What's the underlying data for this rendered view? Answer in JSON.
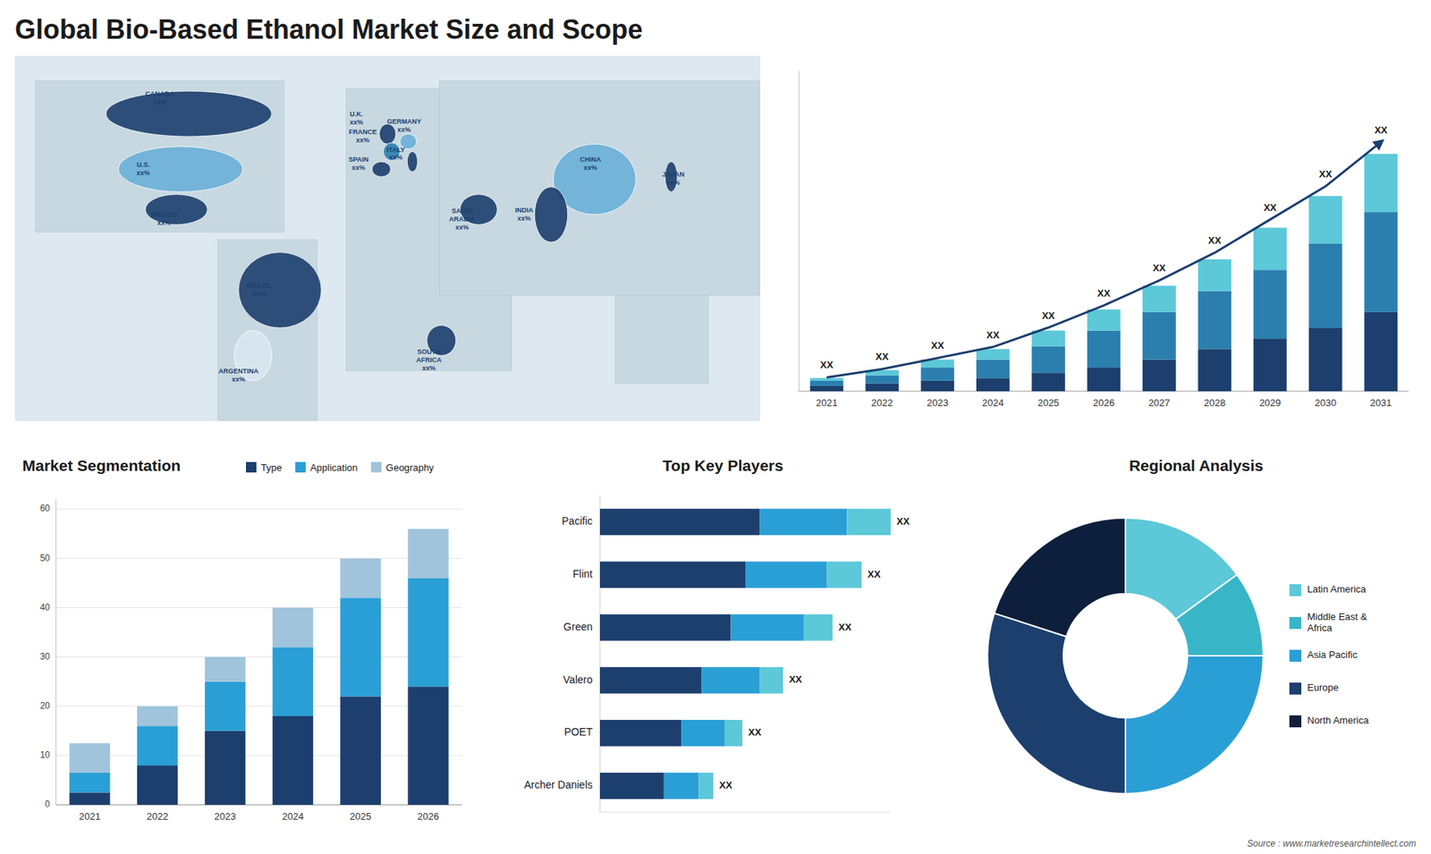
{
  "title": "Global Bio-Based Ethanol Market Size and Scope",
  "annotations": [
    "Source : www.marketresearchintellect.com"
  ],
  "chart_data": [
    {
      "type": "map",
      "categories": [
        "CANADA",
        "U.S.",
        "MEXICO",
        "BRAZIL",
        "ARGENTINA",
        "U.K.",
        "FRANCE",
        "SPAIN",
        "GERMANY",
        "ITALY",
        "SAUDI\nARABIA",
        "SOUTH\nAFRICA",
        "CHINA",
        "INDIA",
        "JAPAN"
      ],
      "annotations": [
        "xx%",
        "xx%",
        "xx%",
        "xx%",
        "xx%",
        "xx%",
        "xx%",
        "xx%",
        "xx%",
        "xx%",
        "xx%",
        "xx%",
        "xx%",
        "xx%",
        "xx%"
      ],
      "colors": [
        "#1c3f6e",
        "#6ab0d8",
        "#1c3f6e",
        "#1c3f6e",
        "#d8e8f0",
        "#1c3f6e",
        "#2a7fae",
        "#1c3f6e",
        "#6ab0d8",
        "#1c3f6e",
        "#1c3f6e",
        "#1c3f6e",
        "#6ab0d8",
        "#1c3f6e",
        "#1c3f6e"
      ]
    },
    {
      "type": "bar",
      "stacked": true,
      "categories": [
        "2021",
        "2022",
        "2023",
        "2024",
        "2025",
        "2026",
        "2027",
        "2028",
        "2029",
        "2030",
        "2031"
      ],
      "series": [
        {
          "color": "#1c3f6e",
          "values": [
            1,
            1.5,
            2,
            2.5,
            3.5,
            4.5,
            6,
            8,
            10,
            12,
            15
          ]
        },
        {
          "color": "#2a7fae",
          "values": [
            1,
            1.5,
            2.5,
            3.5,
            5,
            7,
            9,
            11,
            13,
            16,
            19
          ]
        },
        {
          "color": "#5cc8d8",
          "values": [
            0.5,
            1,
            1.5,
            2,
            3,
            4,
            5,
            6,
            8,
            9,
            11
          ]
        },
        {
          "type": "line",
          "color": "#1c3f6e",
          "values": [
            2.625,
            4.2,
            6.3,
            8.4,
            12.075,
            16.275,
            21,
            26.25,
            32.55,
            38.85,
            47.25
          ]
        }
      ],
      "annotations": [
        "XX",
        "XX",
        "XX",
        "XX",
        "XX",
        "XX",
        "XX",
        "XX",
        "XX",
        "XX",
        "XX"
      ],
      "ylim": [
        0,
        60.75
      ],
      "tick_labels": "x",
      "grid": false
    },
    {
      "type": "bar",
      "stacked": true,
      "title": "Market Segmentation",
      "categories": [
        "2021",
        "2022",
        "2023",
        "2024",
        "2025",
        "2026"
      ],
      "series": [
        {
          "name": "Type",
          "color": "#1c3f6e",
          "values": [
            2.5,
            8,
            15,
            18,
            22,
            24
          ]
        },
        {
          "name": "Application",
          "color": "#2a9fd6",
          "values": [
            4,
            8,
            10,
            14,
            20,
            22
          ]
        },
        {
          "name": "Geography",
          "color": "#a0c4dc",
          "values": [
            6,
            4,
            5,
            8,
            8,
            10
          ]
        }
      ],
      "ylim": [
        0,
        62
      ],
      "yticks": [
        0,
        10,
        20,
        30,
        40,
        50,
        60
      ],
      "grid": true,
      "legend": "upper right"
    },
    {
      "type": "bar",
      "orientation": "horizontal",
      "stacked": true,
      "title": "Top Key Players",
      "categories": [
        "Pacific",
        "Flint",
        "Green",
        "Valero",
        "POET",
        "Archer Daniels"
      ],
      "series": [
        {
          "color": "#1c3f6e",
          "values": [
            55,
            50,
            45,
            35,
            28,
            22
          ]
        },
        {
          "color": "#2a9fd6",
          "values": [
            30,
            28,
            25,
            20,
            15,
            12
          ]
        },
        {
          "color": "#5cc8d8",
          "values": [
            15,
            12,
            10,
            8,
            6,
            5
          ]
        }
      ],
      "annotations": [
        "XX",
        "XX",
        "XX",
        "XX",
        "XX",
        "XX"
      ],
      "xlim": [
        0,
        100
      ],
      "tick_labels": "y"
    },
    {
      "type": "pie",
      "title": "Regional Analysis",
      "categories": [
        "Latin America",
        "Middle East &\nAfrica",
        "Asia Pacific",
        "Europe",
        "North America"
      ],
      "values": [
        15,
        10,
        25,
        30,
        20
      ],
      "colors": [
        "#5cc8d8",
        "#38b6c8",
        "#2a9fd6",
        "#1c3f6e",
        "#0d1f3c"
      ],
      "legend": "right"
    }
  ]
}
